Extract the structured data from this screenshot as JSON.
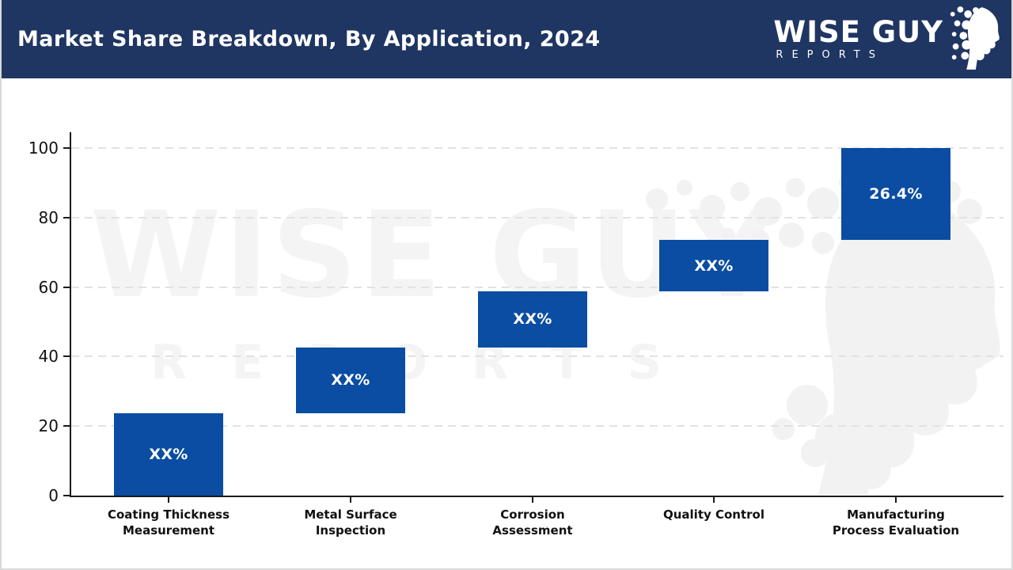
{
  "header": {
    "title": "Market Share Breakdown, By Application, 2024",
    "brand": {
      "line1": "WISE GUY",
      "line2": "REPORTS"
    }
  },
  "watermark": {
    "line1": "WISE GUY",
    "line2": "REPORTS"
  },
  "colors": {
    "header_bg": "#1f3562",
    "bar": "#0a4da2",
    "bar_label": "#ffffff",
    "grid": "#e2e2e2",
    "axis": "#1a1a1a",
    "watermark": "#f3f3f3"
  },
  "chart_data": {
    "type": "bar",
    "subtype": "waterfall",
    "title": "Market Share Breakdown, By Application, 2024",
    "xlabel": "",
    "ylabel": "",
    "ylim": [
      0,
      100
    ],
    "yticks": [
      0,
      20,
      40,
      60,
      80,
      100
    ],
    "grid": {
      "axis": "y",
      "style": "dashed"
    },
    "legend": null,
    "categories": [
      "Coating Thickness Measurement",
      "Metal Surface Inspection",
      "Corrosion Assessment",
      "Quality Control",
      "Manufacturing Process Evaluation"
    ],
    "category_label_lines": [
      [
        "Coating Thickness",
        "Measurement"
      ],
      [
        "Metal Surface",
        "Inspection"
      ],
      [
        "Corrosion",
        "Assessment"
      ],
      [
        "Quality Control"
      ],
      [
        "Manufacturing",
        "Process Evaluation"
      ]
    ],
    "segments": [
      {
        "start": 0,
        "end": 23.7,
        "height": 23.7,
        "label": "XX%"
      },
      {
        "start": 23.7,
        "end": 42.7,
        "height": 19.0,
        "label": "XX%"
      },
      {
        "start": 42.7,
        "end": 58.7,
        "height": 16.0,
        "label": "XX%"
      },
      {
        "start": 58.7,
        "end": 73.6,
        "height": 14.9,
        "label": "XX%"
      },
      {
        "start": 73.6,
        "end": 100,
        "height": 26.4,
        "label": "26.4%",
        "value": 26.4
      }
    ]
  }
}
